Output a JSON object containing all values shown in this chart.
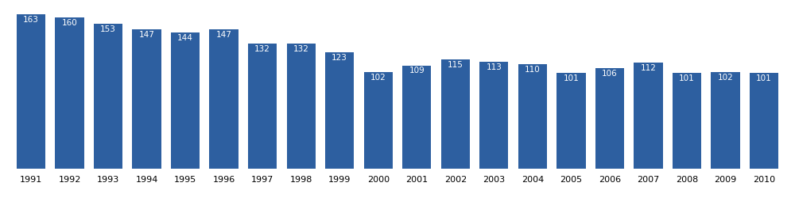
{
  "years": [
    1991,
    1992,
    1993,
    1994,
    1995,
    1996,
    1997,
    1998,
    1999,
    2000,
    2001,
    2002,
    2003,
    2004,
    2005,
    2006,
    2007,
    2008,
    2009,
    2010
  ],
  "values": [
    163,
    160,
    153,
    147,
    144,
    147,
    132,
    132,
    123,
    102,
    109,
    115,
    113,
    110,
    101,
    106,
    112,
    101,
    102,
    101
  ],
  "bar_color": "#2d5fa0",
  "label_color": "#ffffff",
  "background_color": "#ffffff",
  "label_fontsize": 7.5,
  "tick_fontsize": 8,
  "ylim": [
    0,
    172
  ],
  "bar_width": 0.75
}
